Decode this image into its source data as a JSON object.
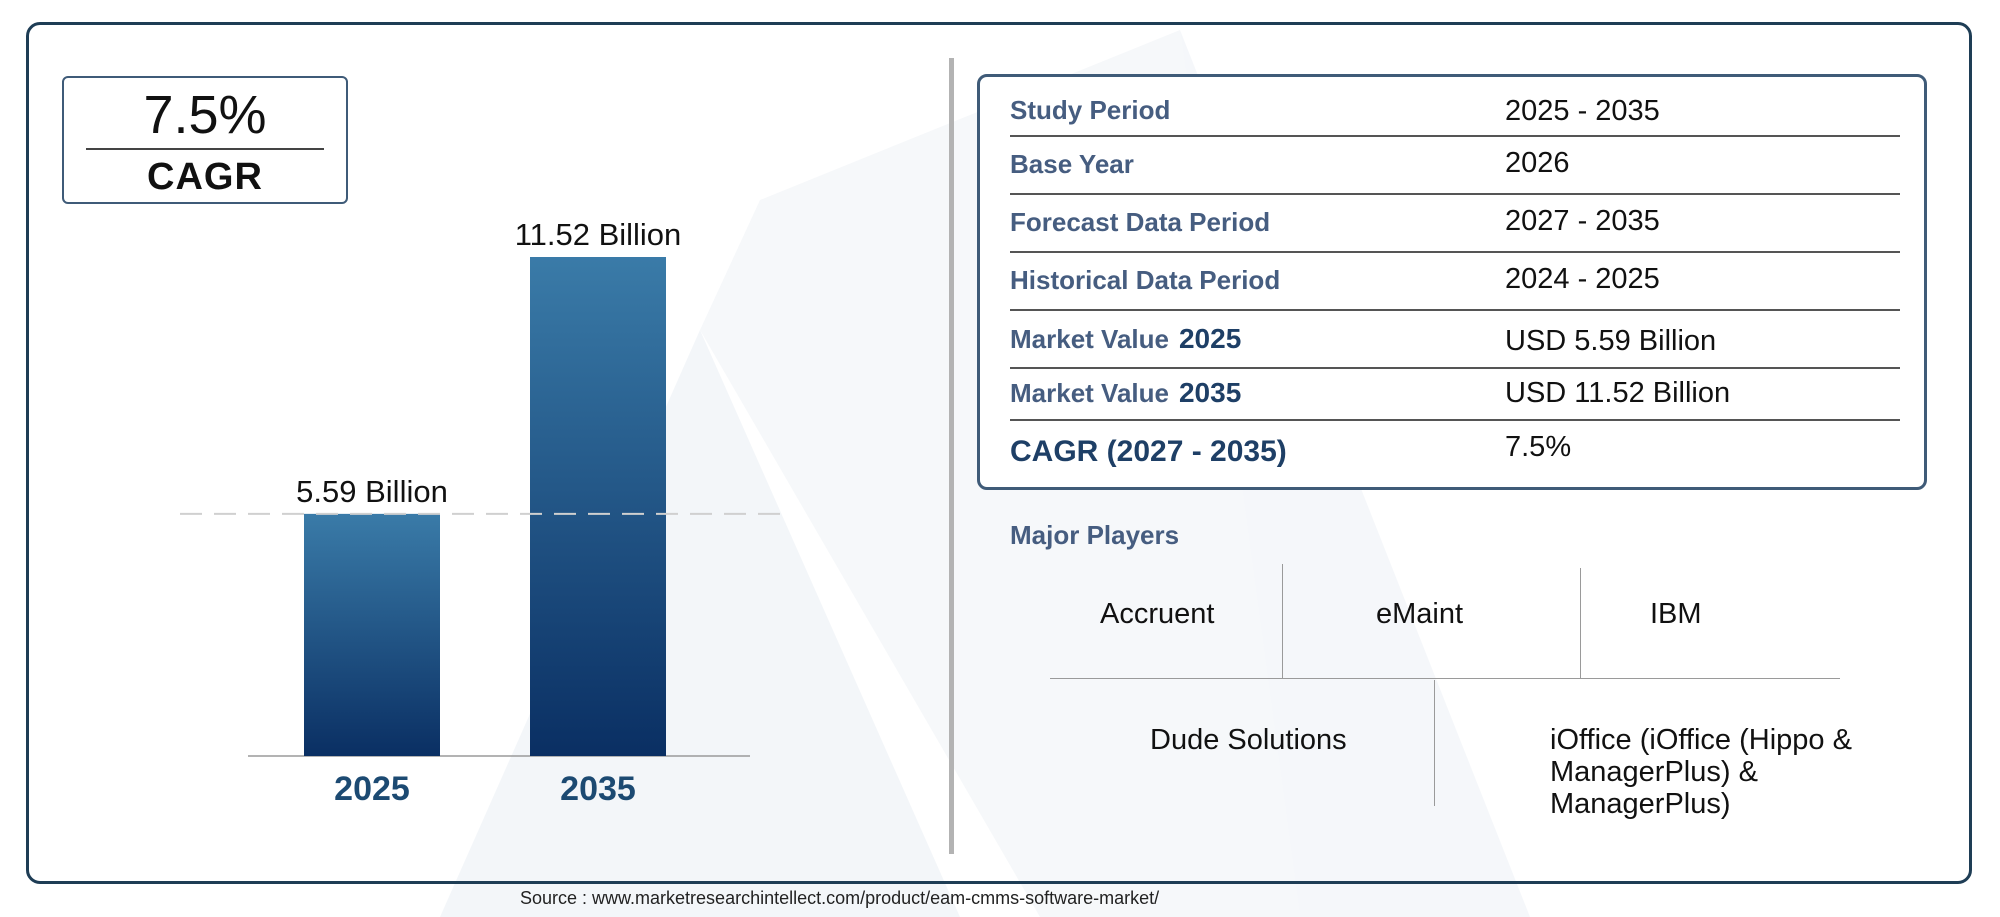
{
  "cagr_box": {
    "value": "7.5%",
    "label": "CAGR"
  },
  "chart_data": {
    "type": "bar",
    "categories": [
      "2025",
      "2035"
    ],
    "values": [
      5.59,
      11.52
    ],
    "data_labels": [
      "5.59 Billion",
      "11.52 Billion"
    ],
    "title": "",
    "xlabel": "",
    "ylabel": "",
    "ylim": [
      0,
      11.52
    ],
    "grid": false,
    "reference_line": 5.59,
    "colors": {
      "bar_top": "#3a7ba8",
      "bar_bottom": "#0a2f63",
      "tick_label": "#1c4a72"
    }
  },
  "info": {
    "rows": [
      {
        "label": "Study Period",
        "value": "2025 - 2035"
      },
      {
        "label": "Base Year",
        "value": "2026"
      },
      {
        "label": "Forecast Data Period",
        "value": "2027 - 2035"
      },
      {
        "label": "Historical Data Period",
        "value": "2024 - 2025"
      },
      {
        "label": "Market Value",
        "year": "2025",
        "value": "USD 5.59 Billion"
      },
      {
        "label": "Market Value",
        "year": "2035",
        "value": "USD 11.52 Billion"
      },
      {
        "label": "CAGR (2027 - 2035)",
        "value": "7.5%"
      }
    ]
  },
  "players": {
    "title": "Major Players",
    "items": [
      "Accruent",
      "eMaint",
      "IBM",
      "Dude Solutions",
      "iOffice (iOffice (Hippo & ManagerPlus) & ManagerPlus)"
    ]
  },
  "source": "Source : www.marketresearchintellect.com/product/eam-cmms-software-market/"
}
